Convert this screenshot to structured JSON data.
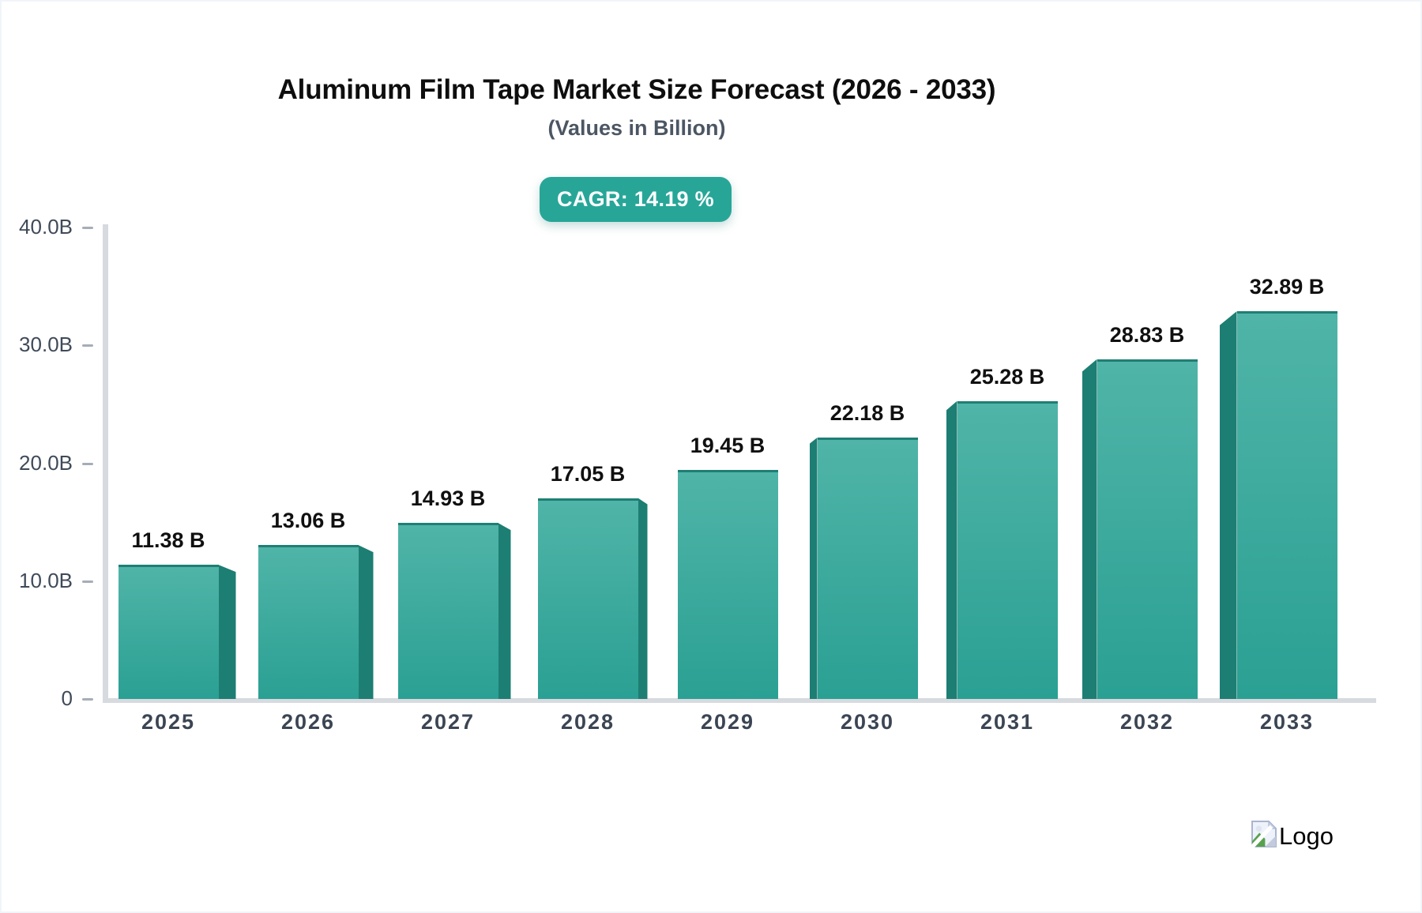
{
  "header": {
    "title": "Aluminum Film Tape Market Size Forecast (2026 - 2033)",
    "subtitle": "(Values in Billion)",
    "cagr_label": "CAGR: 14.19 %"
  },
  "chart_data": {
    "type": "bar",
    "title": "Aluminum Film Tape Market Size Forecast (2026 - 2033)",
    "subtitle": "(Values in Billion)",
    "cagr_annotation": "CAGR: 14.19 %",
    "categories": [
      "2025",
      "2026",
      "2027",
      "2028",
      "2029",
      "2030",
      "2031",
      "2032",
      "2033"
    ],
    "values": [
      11.38,
      13.06,
      14.93,
      17.05,
      19.45,
      22.18,
      25.28,
      28.83,
      32.89
    ],
    "value_labels": [
      "11.38 B",
      "13.06 B",
      "14.93 B",
      "17.05 B",
      "19.45 B",
      "22.18 B",
      "25.28 B",
      "28.83 B",
      "32.89 B"
    ],
    "unit": "Billion",
    "ylim": [
      0,
      40
    ],
    "yticks": [
      {
        "value": 40,
        "label": "40.0B"
      },
      {
        "value": 30,
        "label": "30.0B"
      },
      {
        "value": 20,
        "label": "20.0B"
      },
      {
        "value": 10,
        "label": "10.0B"
      },
      {
        "value": 0,
        "label": "0"
      }
    ],
    "grid": false,
    "legend": false,
    "bar_style": "3d-perspective-center"
  },
  "logo": {
    "alt_text": "Logo"
  },
  "colors": {
    "badge_bg": "#27a698",
    "badge_text": "#ffffff",
    "bar_face_top": "#50b4a8",
    "bar_face_bottom": "#2aa093",
    "bar_top_edge": "#1f7f74",
    "bar_side": "#1d7e73",
    "axis_line": "#d7dade",
    "tick_dash": "#a6adb7",
    "y_label": "#3f4a58",
    "x_label": "#3b4553",
    "value_label": "#101010",
    "title": "#0e0e0e",
    "subtitle": "#4c5663"
  }
}
